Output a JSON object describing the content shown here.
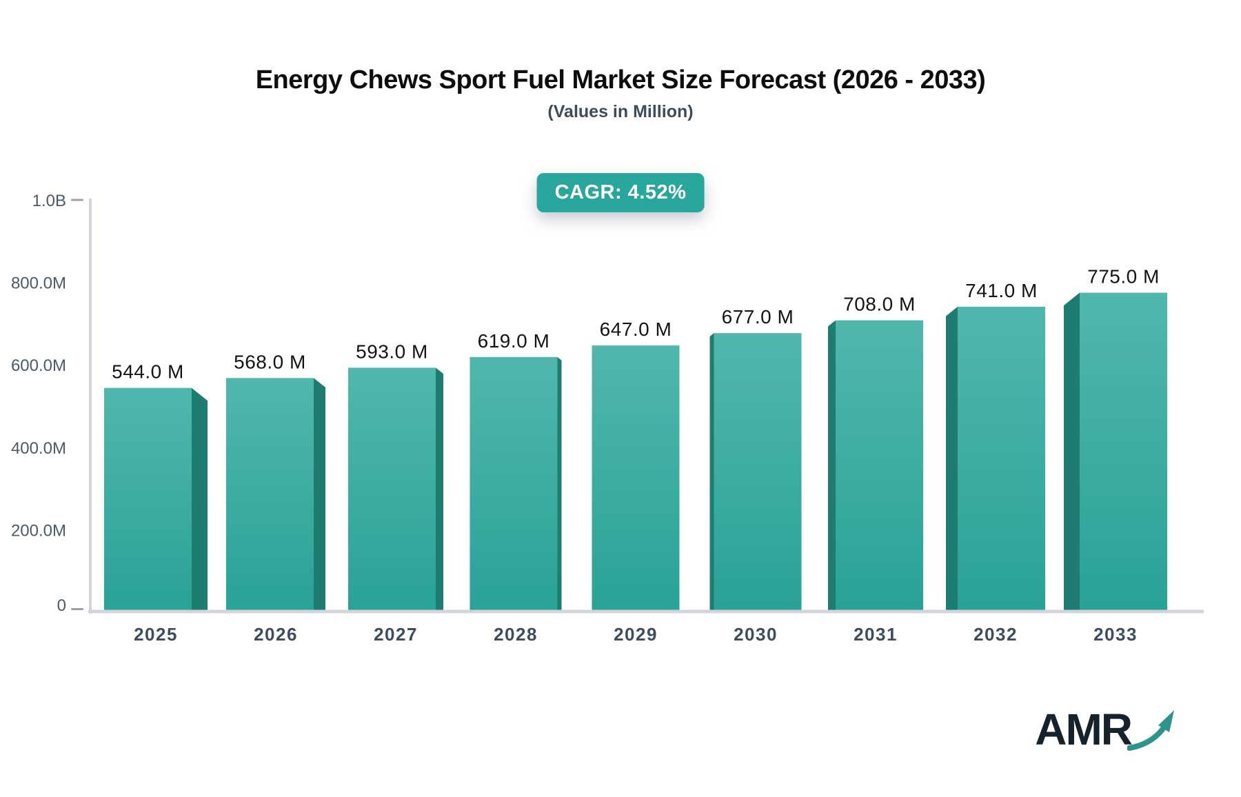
{
  "chart_data": {
    "type": "bar",
    "title": "Energy Chews Sport Fuel Market Size Forecast (2026 - 2033)",
    "subtitle": "(Values in Million)",
    "cagr_badge": "CAGR: 4.52%",
    "categories": [
      "2025",
      "2026",
      "2027",
      "2028",
      "2029",
      "2030",
      "2031",
      "2032",
      "2033"
    ],
    "values": [
      544,
      568,
      593,
      619,
      647,
      677,
      708,
      741,
      775
    ],
    "value_labels": [
      "544.0 M",
      "568.0 M",
      "593.0 M",
      "619.0 M",
      "647.0 M",
      "677.0 M",
      "708.0 M",
      "741.0 M",
      "775.0 M"
    ],
    "ylim": [
      0,
      1000
    ],
    "y_ticks": [
      {
        "value": 1000,
        "label": "1.0B",
        "tick_dash": true
      },
      {
        "value": 800,
        "label": "800.0M",
        "tick_dash": false
      },
      {
        "value": 600,
        "label": "600.0M",
        "tick_dash": false
      },
      {
        "value": 400,
        "label": "400.0M",
        "tick_dash": false
      },
      {
        "value": 200,
        "label": "200.0M",
        "tick_dash": false
      },
      {
        "value": 0,
        "label": "0",
        "tick_dash": true
      }
    ],
    "xlabel": "",
    "ylabel": "",
    "grid": false,
    "legend": false,
    "bar_style": "3d-perspective"
  },
  "branding": {
    "logo_text": "AMR"
  },
  "colors": {
    "bar_face_top": "#51b7ac",
    "bar_face_bottom": "#29a296",
    "bar_side": "#1f7c71",
    "badge_bg": "#2aa79d",
    "axis_line": "#d1d4da",
    "tick_dash": "#98a0aa",
    "y_label": "#4c5a68",
    "x_label": "#3d4c5e",
    "data_label": "#131313",
    "logo_arrow": "#2e948a"
  }
}
